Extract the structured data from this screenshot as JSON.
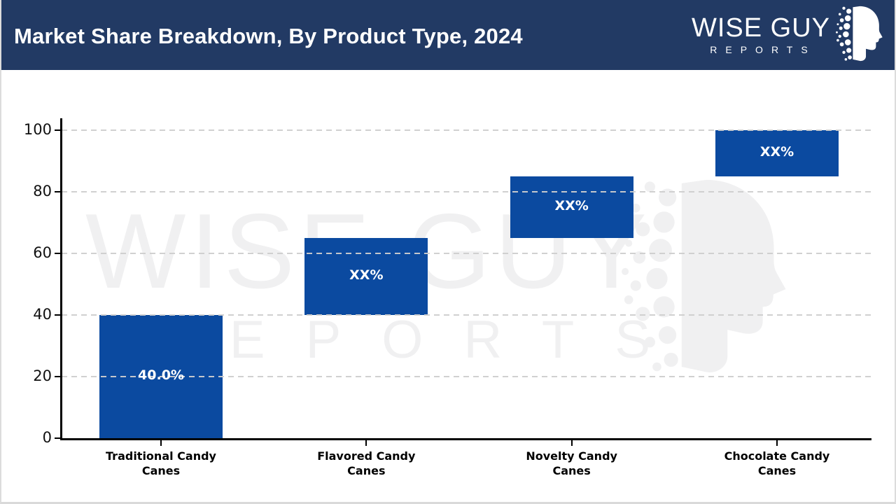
{
  "header": {
    "title": "Market Share Breakdown, By Product Type, 2024",
    "background_color": "#223a64",
    "logo": {
      "line1": "WISE GUY",
      "line2": "REPORTS"
    }
  },
  "watermark": {
    "line1": "WISE GUY",
    "line2": "REPORTS",
    "color": "#f0f0f1"
  },
  "chart_data": {
    "type": "bar",
    "subtype": "waterfall",
    "title": "Market Share Breakdown, By Product Type, 2024",
    "categories": [
      "Traditional Candy Canes",
      "Flavored Candy Canes",
      "Novelty Candy Canes",
      "Chocolate Candy Canes"
    ],
    "category_lines": [
      [
        "Traditional Candy",
        "Canes"
      ],
      [
        "Flavored Candy",
        "Canes"
      ],
      [
        "Novelty Candy",
        "Canes"
      ],
      [
        "Chocolate Candy",
        "Canes"
      ]
    ],
    "segments": [
      {
        "category": "Traditional Candy Canes",
        "start": 0,
        "end": 40,
        "value": 40,
        "label": "40.0%"
      },
      {
        "category": "Flavored Candy Canes",
        "start": 40,
        "end": 65,
        "value": 25,
        "label": "XX%"
      },
      {
        "category": "Novelty Candy Canes",
        "start": 65,
        "end": 85,
        "value": 20,
        "label": "XX%"
      },
      {
        "category": "Chocolate Candy Canes",
        "start": 85,
        "end": 100,
        "value": 15,
        "label": "XX%"
      }
    ],
    "xlabel": "",
    "ylabel": "",
    "ylim": [
      0,
      100
    ],
    "yticks": [
      0,
      20,
      40,
      60,
      80,
      100
    ],
    "grid": true,
    "grid_style": "dashed horizontal",
    "legend": false,
    "bar_color": "#0b4aa0",
    "bar_label_color": "#ffffff",
    "axis_color": "#000000",
    "grid_color": "#cecece"
  }
}
